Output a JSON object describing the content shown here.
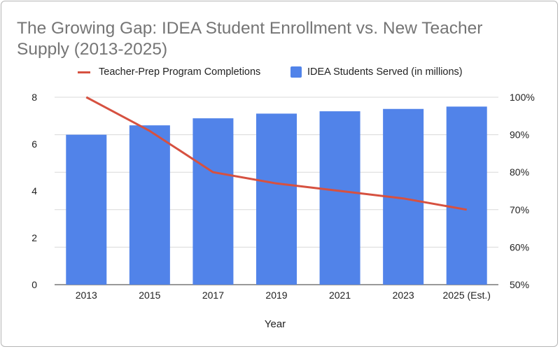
{
  "chart_data": {
    "type": "bar",
    "title": "The Growing Gap: IDEA Student Enrollment vs. New Teacher Supply (2013-2025)",
    "xlabel": "Year",
    "ylabel": "",
    "ylabel_right": "",
    "categories": [
      "2013",
      "2015",
      "2017",
      "2019",
      "2021",
      "2023",
      "2025 (Est.)"
    ],
    "series": [
      {
        "name": "IDEA Students Served (in millions)",
        "type": "bar",
        "axis": "left",
        "color": "#5183e9",
        "values": [
          6.4,
          6.8,
          7.1,
          7.3,
          7.4,
          7.5,
          7.6
        ]
      },
      {
        "name": "Teacher-Prep Program Completions",
        "type": "line",
        "axis": "right",
        "color": "#d65140",
        "values": [
          100,
          91,
          80,
          77,
          75,
          73,
          70
        ]
      }
    ],
    "ylim": [
      0,
      8
    ],
    "yticks": [
      0,
      2,
      4,
      6,
      8
    ],
    "ylim_right": [
      50,
      100
    ],
    "yticks_right": [
      "50%",
      "60%",
      "70%",
      "80%",
      "90%",
      "100%"
    ],
    "grid": true,
    "legend_position": "top"
  }
}
